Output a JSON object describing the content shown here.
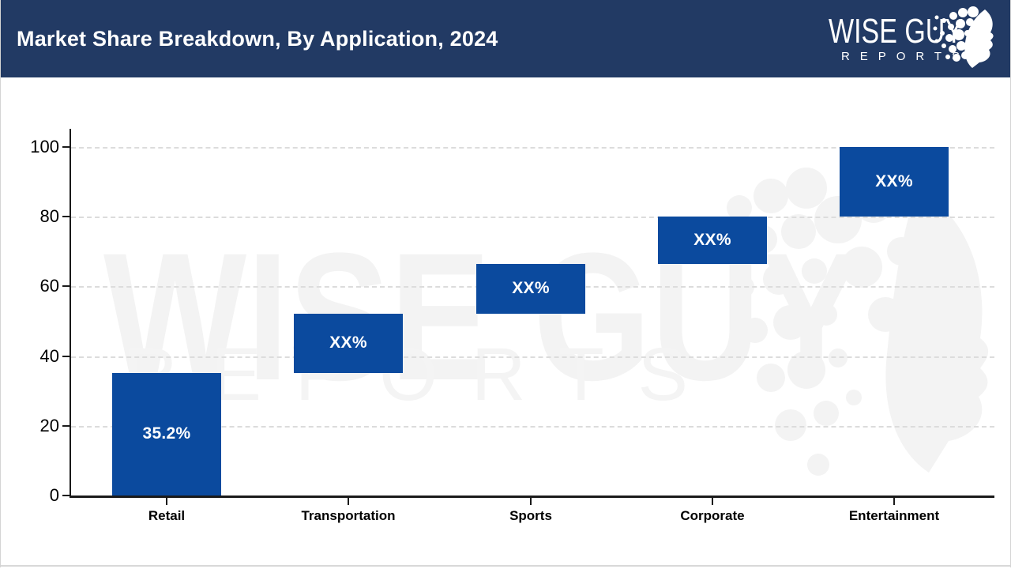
{
  "header": {
    "title": "Market Share Breakdown, By Application, 2024",
    "logo": {
      "line1": "WISE GUY",
      "line2": "REPORTS"
    }
  },
  "watermark": {
    "line1": "WISE GUY",
    "line2": "REPORTS"
  },
  "colors": {
    "header_bg": "#223a64",
    "bar_blue": "#0b4a9e",
    "grid_gray": "#dcdcdc",
    "watermark_gray": "#f3f3f3",
    "axis_black": "#1a1a1a"
  },
  "chart_data": {
    "type": "bar",
    "variant": "waterfall",
    "title": "Market Share Breakdown, By Application, 2024",
    "categories": [
      "Retail",
      "Transportation",
      "Sports",
      "Corporate",
      "Entertainment"
    ],
    "segments": [
      {
        "category": "Retail",
        "start": 0,
        "end": 35.2,
        "label": "35.2%"
      },
      {
        "category": "Transportation",
        "start": 35.2,
        "end": 52.2,
        "label": "XX%"
      },
      {
        "category": "Sports",
        "start": 52.2,
        "end": 66.4,
        "label": "XX%"
      },
      {
        "category": "Corporate",
        "start": 66.4,
        "end": 80,
        "label": "XX%"
      },
      {
        "category": "Entertainment",
        "start": 80,
        "end": 100,
        "label": "XX%"
      }
    ],
    "ylim": [
      0,
      100
    ],
    "yticks": [
      0,
      20,
      40,
      60,
      80,
      100
    ],
    "grid": "horizontal-dashed",
    "legend": "none",
    "bar_color": "#0b4a9e",
    "bar_label_color": "#ffffff"
  }
}
